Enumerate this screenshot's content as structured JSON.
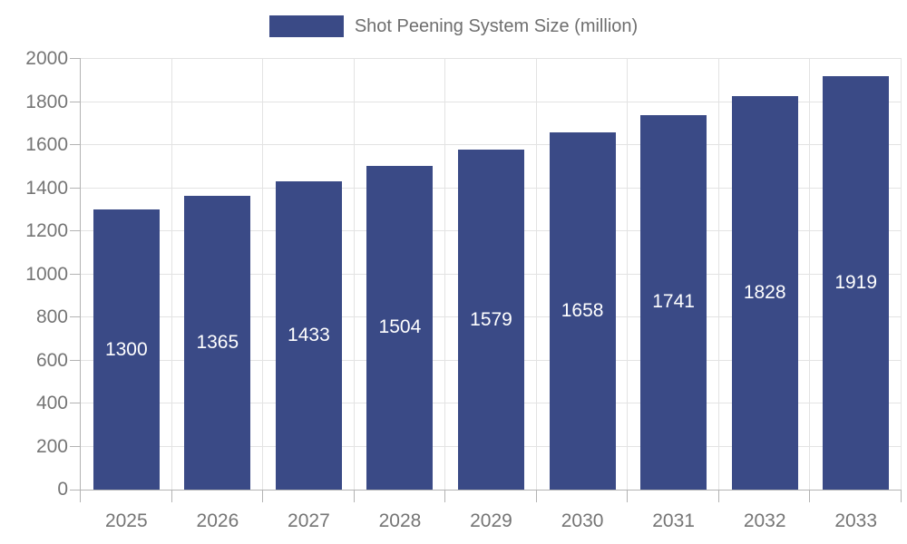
{
  "chart_data": {
    "type": "bar",
    "title": "",
    "legend": "Shot Peening System Size (million)",
    "categories": [
      "2025",
      "2026",
      "2027",
      "2028",
      "2029",
      "2030",
      "2031",
      "2032",
      "2033"
    ],
    "values": [
      1300,
      1365,
      1433,
      1504,
      1579,
      1658,
      1741,
      1828,
      1919
    ],
    "xlabel": "",
    "ylabel": "",
    "ylim": [
      0,
      2000
    ],
    "yticks": [
      0,
      200,
      400,
      600,
      800,
      1000,
      1200,
      1400,
      1600,
      1800,
      2000
    ],
    "grid": true,
    "legend_position": "top-center",
    "value_labels": "inside-center",
    "colors": {
      "bar": "#3A4A86",
      "gridline": "#E3E3E3",
      "axis_line": "#B3B3B3",
      "axis_text": "#757575",
      "legend_text": "#6E6E6E",
      "value_text": "#FFFFFF"
    }
  }
}
